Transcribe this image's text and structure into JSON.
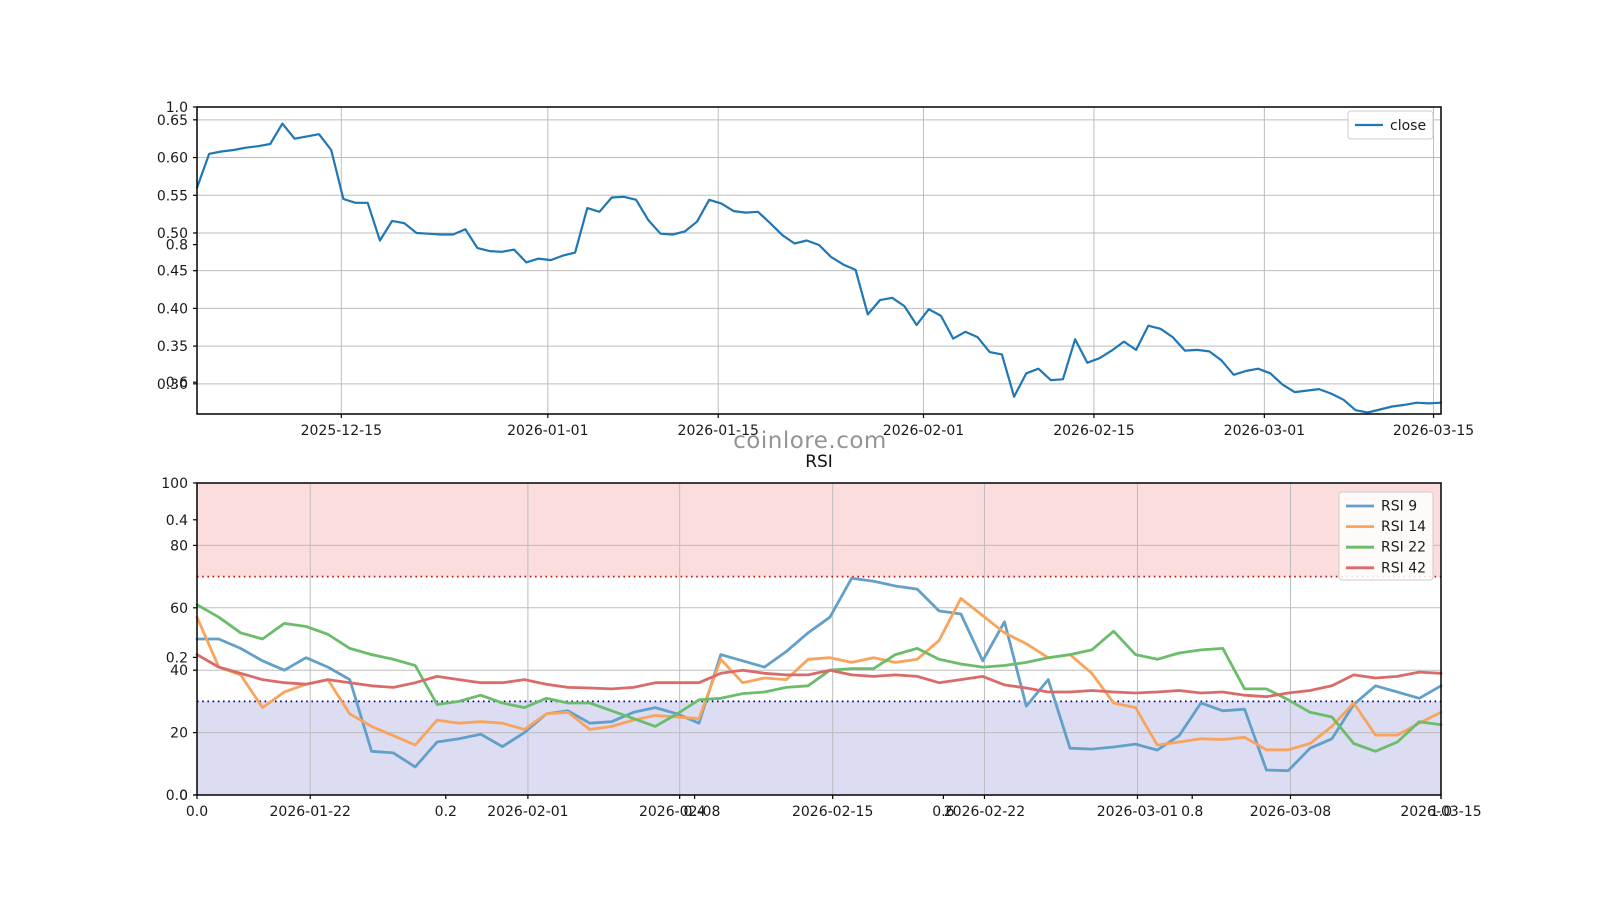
{
  "watermark": "coinlore.com",
  "colors": {
    "close": "#1f77b4",
    "rsi9": "#62a0ca",
    "rsi14": "#f9a45c",
    "rsi22": "#6bbd6b",
    "rsi42": "#d96c6a",
    "overbought_band": "#fbdddd",
    "oversold_band": "#dcdcf2",
    "overbought_line": "#cc1111",
    "oversold_line": "#00008b",
    "grid": "#bdbdbd",
    "spine": "#000000",
    "legend_border": "#cccccc"
  },
  "chart_data": [
    {
      "type": "line",
      "name": "price-panel",
      "title": "",
      "legend": [
        {
          "label": "close",
          "color": "#1f77b4"
        }
      ],
      "legend_position": "upper right",
      "ylim": [
        0.26,
        0.667
      ],
      "y_ticks": [
        0.3,
        0.35,
        0.4,
        0.45,
        0.5,
        0.55,
        0.6,
        0.65
      ],
      "y_tick_labels": [
        "0.30",
        "0.35",
        "0.40",
        "0.45",
        "0.50",
        "0.55",
        "0.60",
        "0.65"
      ],
      "x_ticks": [
        {
          "label": "2025-12-15",
          "pos": 0.116
        },
        {
          "label": "2026-01-01",
          "pos": 0.282
        },
        {
          "label": "2026-01-15",
          "pos": 0.419
        },
        {
          "label": "2026-02-01",
          "pos": 0.584
        },
        {
          "label": "2026-02-15",
          "pos": 0.721
        },
        {
          "label": "2026-03-01",
          "pos": 0.858
        },
        {
          "label": "2026-03-15",
          "pos": 0.994
        }
      ],
      "grid": true,
      "series": [
        {
          "name": "close",
          "color": "#1f77b4",
          "width": 2.2,
          "values": [
            0.56,
            0.605,
            0.608,
            0.61,
            0.613,
            0.615,
            0.618,
            0.645,
            0.625,
            0.628,
            0.631,
            0.61,
            0.545,
            0.54,
            0.54,
            0.49,
            0.516,
            0.513,
            0.5,
            0.499,
            0.498,
            0.498,
            0.505,
            0.48,
            0.476,
            0.475,
            0.478,
            0.461,
            0.466,
            0.464,
            0.47,
            0.474,
            0.533,
            0.528,
            0.547,
            0.548,
            0.544,
            0.517,
            0.499,
            0.498,
            0.502,
            0.515,
            0.544,
            0.539,
            0.529,
            0.527,
            0.528,
            0.513,
            0.497,
            0.486,
            0.49,
            0.484,
            0.468,
            0.458,
            0.451,
            0.392,
            0.411,
            0.414,
            0.403,
            0.378,
            0.399,
            0.39,
            0.36,
            0.369,
            0.362,
            0.342,
            0.339,
            0.283,
            0.314,
            0.32,
            0.305,
            0.306,
            0.359,
            0.328,
            0.334,
            0.344,
            0.356,
            0.345,
            0.377,
            0.373,
            0.362,
            0.344,
            0.345,
            0.343,
            0.331,
            0.312,
            0.317,
            0.32,
            0.314,
            0.299,
            0.289,
            0.291,
            0.293,
            0.287,
            0.279,
            0.265,
            0.262,
            0.266,
            0.27,
            0.272,
            0.275,
            0.274,
            0.275
          ]
        }
      ]
    },
    {
      "type": "line",
      "name": "rsi-panel",
      "title": "RSI",
      "legend": [
        {
          "label": "RSI 9",
          "color": "#62a0ca"
        },
        {
          "label": "RSI 14",
          "color": "#f9a45c"
        },
        {
          "label": "RSI 22",
          "color": "#6bbd6b"
        },
        {
          "label": "RSI 42",
          "color": "#d96c6a"
        }
      ],
      "legend_position": "upper right",
      "ylim": [
        0,
        100
      ],
      "y_ticks": [
        0,
        20,
        40,
        60,
        80,
        100
      ],
      "y_tick_labels": [
        "0",
        "20",
        "40",
        "60",
        "80",
        "100"
      ],
      "x_ticks": [
        {
          "label": "2026-01-22",
          "pos": 0.091
        },
        {
          "label": "2026-02-01",
          "pos": 0.266
        },
        {
          "label": "2026-02-08",
          "pos": 0.388
        },
        {
          "label": "2026-02-15",
          "pos": 0.511
        },
        {
          "label": "2026-02-22",
          "pos": 0.633
        },
        {
          "label": "2026-03-01",
          "pos": 0.756
        },
        {
          "label": "2026-03-08",
          "pos": 0.879
        },
        {
          "label": "2026-03-15",
          "pos": 1.0
        }
      ],
      "grid": true,
      "bands": [
        {
          "from": 70,
          "to": 100,
          "color": "#fbdddd"
        },
        {
          "from": 0,
          "to": 30,
          "color": "#dcdcf2"
        }
      ],
      "hlines": [
        {
          "value": 70,
          "color": "#cc1111"
        },
        {
          "value": 30,
          "color": "#00008b"
        }
      ],
      "series": [
        {
          "name": "rsi-9",
          "color": "#62a0ca",
          "width": 2.8,
          "values": [
            50,
            50,
            47,
            43,
            40,
            44,
            41,
            37,
            14,
            13.5,
            9,
            17,
            18,
            19.5,
            15.5,
            20,
            26,
            27,
            23,
            23.5,
            26.5,
            28,
            26,
            23,
            45,
            43,
            41,
            46,
            52,
            57,
            69.5,
            68.5,
            67,
            66,
            59,
            58,
            43,
            55.5,
            28.5,
            37,
            15,
            14.7,
            15.4,
            16.3,
            14.4,
            19,
            29.5,
            27,
            27.5,
            8,
            7.8,
            15,
            18,
            29,
            35,
            33,
            31,
            35
          ]
        },
        {
          "name": "rsi-14",
          "color": "#f9a45c",
          "width": 2.8,
          "values": [
            57,
            41,
            38.5,
            28,
            33,
            35.5,
            37,
            26,
            22,
            19,
            16,
            24,
            23,
            23.5,
            23,
            21,
            26,
            26.5,
            21,
            22,
            24,
            25.5,
            25,
            24.5,
            43.5,
            36,
            37.5,
            37,
            43.5,
            44,
            42.5,
            44,
            42.5,
            43.5,
            49.5,
            63,
            57.5,
            52,
            48.5,
            44,
            45,
            39,
            29.5,
            28,
            16,
            17,
            18,
            17.8,
            18.5,
            14.5,
            14.5,
            16.5,
            22,
            29.5,
            19.2,
            19.2,
            23,
            26.5
          ]
        },
        {
          "name": "rsi-22",
          "color": "#6bbd6b",
          "width": 2.8,
          "values": [
            61,
            57,
            52,
            50,
            55,
            54,
            51.5,
            47,
            45,
            43.5,
            41.5,
            29,
            30,
            32,
            29.5,
            28,
            31,
            29.5,
            29.5,
            27,
            24.5,
            22,
            26,
            30.5,
            31,
            32.5,
            33,
            34.5,
            35,
            40,
            40.5,
            40.5,
            45,
            47,
            43.5,
            42,
            41,
            41.5,
            42.5,
            44,
            45,
            46.5,
            52.5,
            45,
            43.5,
            45.5,
            46.5,
            47,
            34,
            34,
            30.5,
            26.5,
            25,
            16.5,
            14,
            17,
            23.5,
            22.5
          ]
        },
        {
          "name": "rsi-42",
          "color": "#d96c6a",
          "width": 2.8,
          "values": [
            45,
            41,
            39,
            37,
            36,
            35.5,
            37,
            36,
            35,
            34.5,
            36,
            38,
            37,
            36,
            36,
            37,
            35.5,
            34.5,
            34.3,
            34,
            34.5,
            36,
            36,
            36,
            39,
            40,
            39,
            38.5,
            38.5,
            40,
            38.5,
            38,
            38.5,
            38,
            36,
            37,
            38,
            35.3,
            34.3,
            33,
            33,
            33.5,
            33,
            32.7,
            33,
            33.5,
            32.7,
            33,
            32,
            31.5,
            32.7,
            33.5,
            35,
            38.5,
            37.5,
            38,
            39.4,
            39
          ]
        }
      ]
    },
    {
      "type": "axis-overlay",
      "name": "normalized-overlay-axis",
      "x_tick_labels": [
        "0.0",
        "0.2",
        "0.4",
        "0.6",
        "0.8",
        "1.0"
      ],
      "y_tick_labels": [
        "0.0",
        "0.2",
        "0.4",
        "0.6",
        "0.8",
        "1.0"
      ]
    }
  ]
}
